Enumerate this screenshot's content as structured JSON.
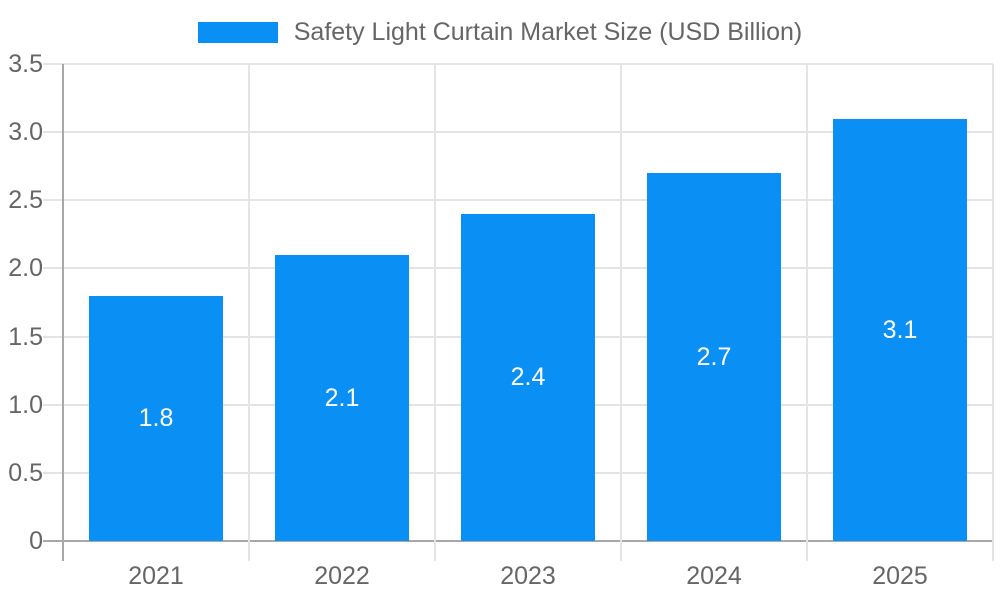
{
  "chart_data": {
    "type": "bar",
    "title": "Safety Light Curtain Market Size (USD Billion)",
    "categories": [
      "2021",
      "2022",
      "2023",
      "2024",
      "2025"
    ],
    "values": [
      1.8,
      2.1,
      2.4,
      2.7,
      3.1
    ],
    "value_labels": [
      "1.8",
      "2.1",
      "2.4",
      "2.7",
      "3.1"
    ],
    "xlabel": "",
    "ylabel": "",
    "ylim": [
      0,
      3.5
    ],
    "y_ticks": [
      0,
      0.5,
      1,
      1.5,
      2,
      2.5,
      3,
      3.5
    ],
    "y_tick_labels": [
      "0",
      "0.5",
      "1.0",
      "1.5",
      "2.0",
      "2.5",
      "3.0",
      "3.5"
    ],
    "grid": true,
    "legend_position": "top-center",
    "value_label_position": "inside-center",
    "colors": {
      "bar": "#0a90f5",
      "grid": "#e4e4e4",
      "axis": "#a8a8a8",
      "tick_text": "#666666",
      "value_text": "#ffffff",
      "background": "#ffffff"
    }
  }
}
